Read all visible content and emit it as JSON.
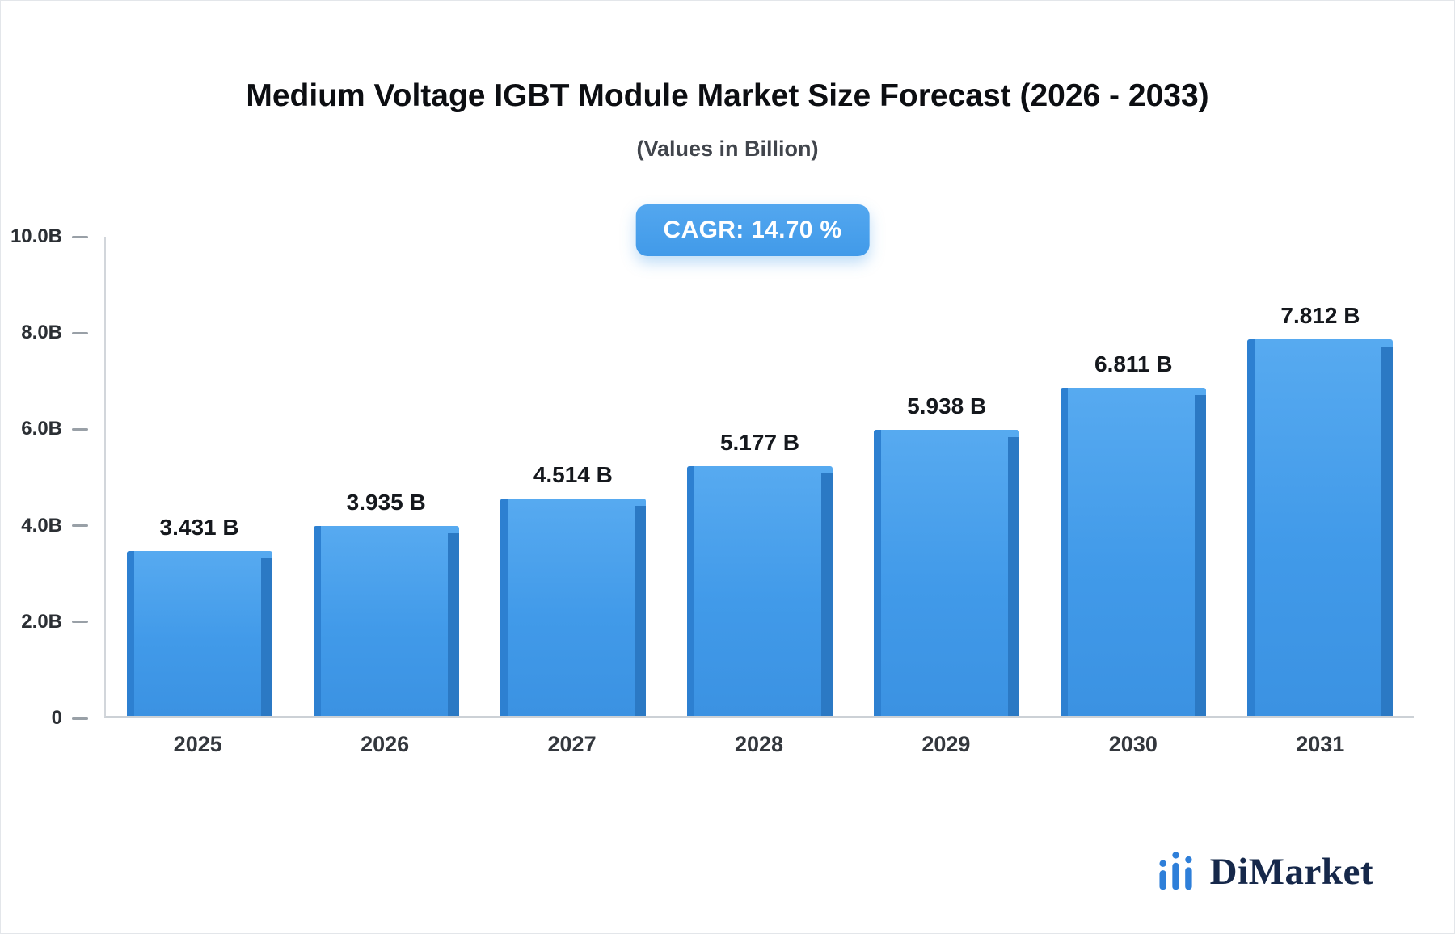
{
  "header": {
    "title": "Medium Voltage IGBT Module Market Size Forecast (2026 - 2033)",
    "subtitle": "(Values in Billion)"
  },
  "cagr_badge": {
    "label": "CAGR: 14.70 %",
    "color": "#459ceb"
  },
  "chart_data": {
    "type": "bar",
    "title": "Medium Voltage IGBT Module Market Size Forecast (2026 - 2033)",
    "subtitle": "(Values in Billion)",
    "categories": [
      "2025",
      "2026",
      "2027",
      "2028",
      "2029",
      "2030",
      "2031"
    ],
    "values": [
      3.431,
      3.935,
      4.514,
      5.177,
      5.938,
      6.811,
      7.812
    ],
    "value_labels": [
      "3.431 B",
      "3.935 B",
      "4.514 B",
      "5.177 B",
      "5.938 B",
      "6.811 B",
      "7.812 B"
    ],
    "ylim": [
      0,
      10
    ],
    "yticks": [
      {
        "label": "10.0B",
        "value": 10
      },
      {
        "label": "8.0B",
        "value": 8
      },
      {
        "label": "6.0B",
        "value": 6
      },
      {
        "label": "4.0B",
        "value": 4
      },
      {
        "label": "2.0B",
        "value": 2
      },
      {
        "label": "0",
        "value": 0
      }
    ],
    "grid": false,
    "legend": false,
    "bar_color": "#459ceb",
    "bar_edge_color": "#2b79c4"
  },
  "footer": {
    "brand": "DiMarket",
    "logo_icon": "bar-chart-dots-icon"
  }
}
